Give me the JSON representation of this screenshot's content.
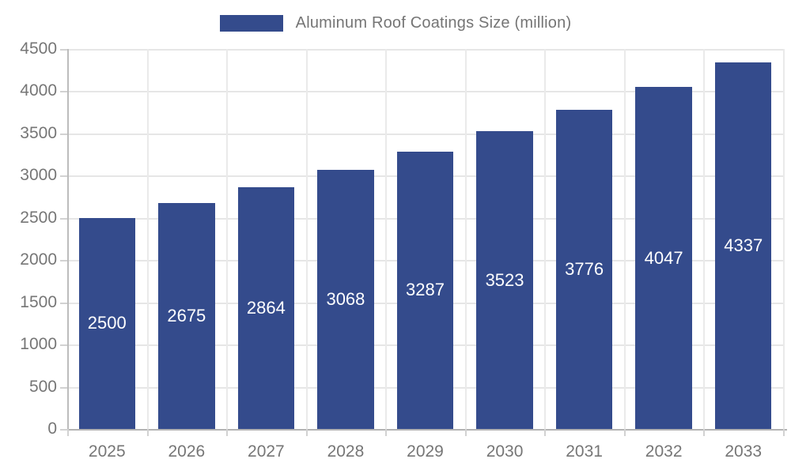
{
  "legend": {
    "label": "Aluminum Roof Coatings Size (million)",
    "swatch_color": "#344B8C"
  },
  "chart_data": {
    "type": "bar",
    "title": "Aluminum Roof Coatings Size (million)",
    "categories": [
      "2025",
      "2026",
      "2027",
      "2028",
      "2029",
      "2030",
      "2031",
      "2032",
      "2033"
    ],
    "values": [
      2500,
      2675,
      2864,
      3068,
      3287,
      3523,
      3776,
      4047,
      4337
    ],
    "xlabel": "",
    "ylabel": "",
    "ylim": [
      0,
      4500
    ],
    "ytick_step": 500,
    "yticks": [
      "0",
      "500",
      "1000",
      "1500",
      "2000",
      "2500",
      "3000",
      "3500",
      "4000",
      "4500"
    ],
    "bar_color": "#344B8C",
    "bar_label_color": "#ffffff",
    "grid": true,
    "legend_position": "top-center"
  },
  "colors": {
    "background": "#ffffff",
    "grid_horizontal": "#e6e6e6",
    "grid_vertical": "#eaeaea",
    "axis": "#b3b3b3",
    "tick_text": "#767676",
    "legend_text": "#757575"
  }
}
